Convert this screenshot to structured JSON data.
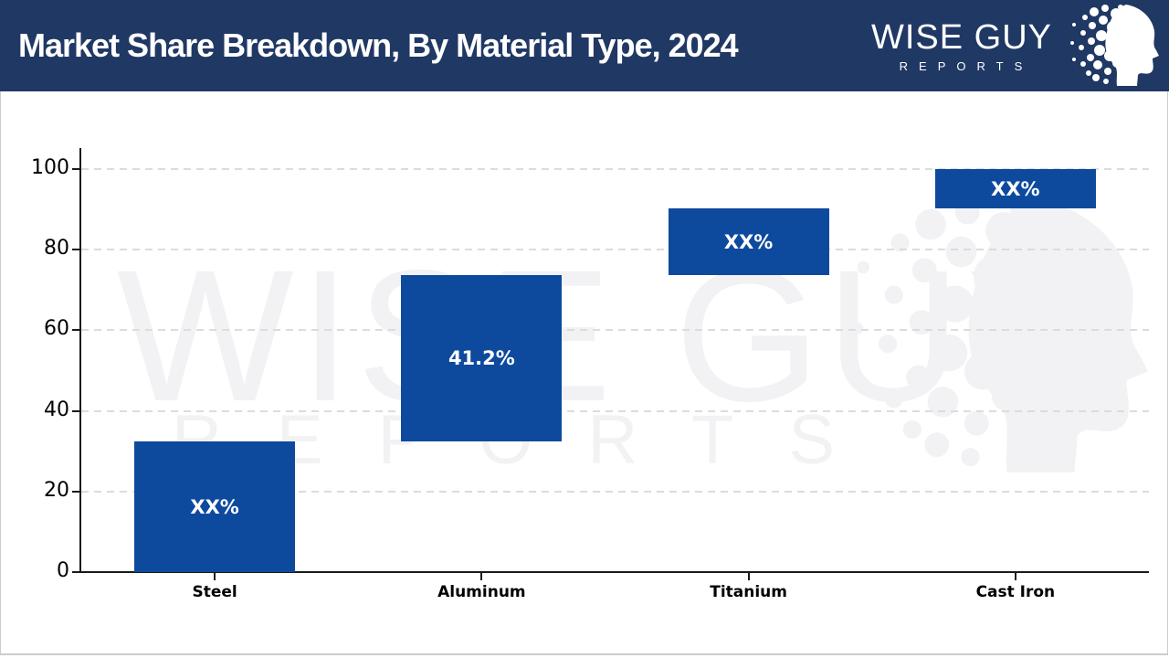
{
  "header": {
    "title": "Market Share Breakdown, By Material Type, 2024",
    "bg_color": "#203864",
    "logo": {
      "line1": "WISE GUY",
      "line2": "REPORTS"
    }
  },
  "watermark": {
    "line1": "WISE GUY",
    "line2": "REPORTS"
  },
  "chart_data": {
    "type": "bar",
    "subtype": "floating-waterfall",
    "title": "Market Share Breakdown, By Material Type, 2024",
    "categories": [
      "Steel",
      "Aluminum",
      "Titanium",
      "Cast Iron"
    ],
    "bars": [
      {
        "category": "Steel",
        "from": 0,
        "to": 32.4,
        "label": "XX%"
      },
      {
        "category": "Aluminum",
        "from": 32.4,
        "to": 73.6,
        "label": "41.2%"
      },
      {
        "category": "Titanium",
        "from": 73.6,
        "to": 90.2,
        "label": "XX%"
      },
      {
        "category": "Cast Iron",
        "from": 90.2,
        "to": 100,
        "label": "XX%"
      }
    ],
    "xlabel": "",
    "ylabel": "",
    "ylim": [
      0,
      100
    ],
    "yticks": [
      0,
      20,
      40,
      60,
      80,
      100
    ],
    "grid": "horizontal dashed",
    "legend": "none",
    "bar_color": "#0d4a9e",
    "bar_label_color": "#ffffff"
  }
}
